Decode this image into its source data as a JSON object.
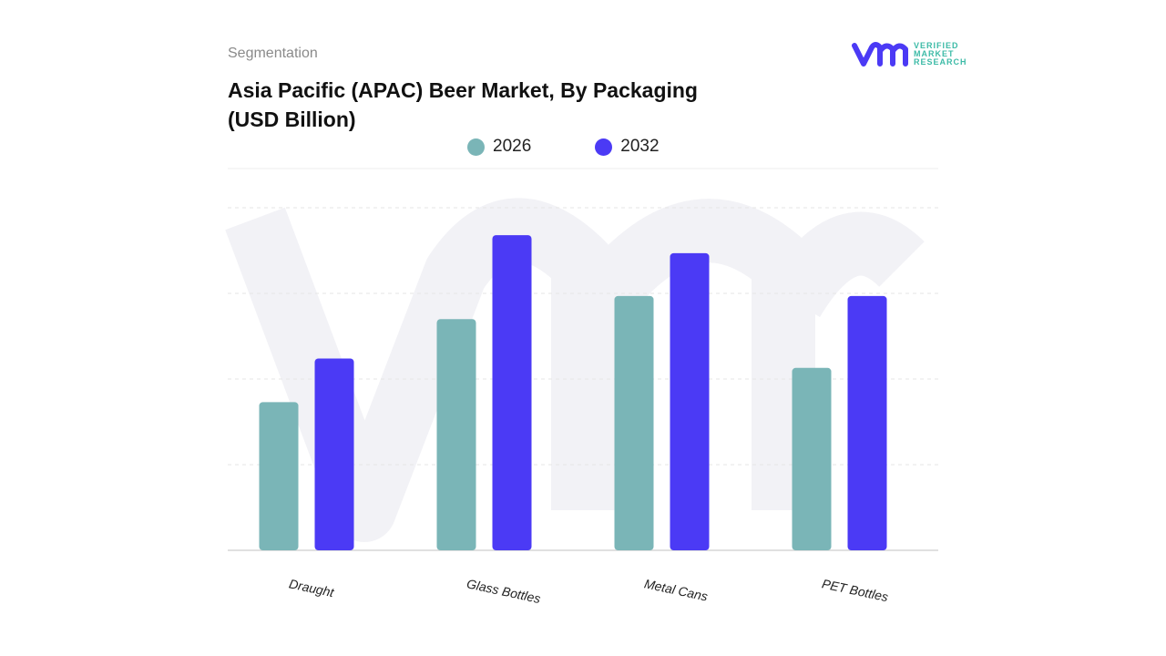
{
  "header": {
    "section": "Segmentation",
    "title": "Asia Pacific (APAC) Beer Market, By Packaging (USD Billion)"
  },
  "logo": {
    "lines": [
      "VERIFIED",
      "MARKET",
      "RESEARCH"
    ]
  },
  "colors": {
    "2026": "#7ab5b7",
    "2032": "#4b3af5"
  },
  "chart_data": {
    "type": "bar",
    "title": "Asia Pacific (APAC) Beer Market, By Packaging (USD Billion)",
    "categories": [
      "Draught",
      "Glass Bottles",
      "Metal Cans",
      "PET Bottles"
    ],
    "series": [
      {
        "name": "2026",
        "values": [
          1.73,
          2.7,
          2.97,
          2.13
        ]
      },
      {
        "name": "2032",
        "values": [
          2.24,
          3.68,
          3.47,
          2.97
        ]
      }
    ],
    "ylim": [
      0,
      4
    ],
    "grid": true,
    "legend": "top-center",
    "xlabel": "",
    "ylabel": ""
  }
}
